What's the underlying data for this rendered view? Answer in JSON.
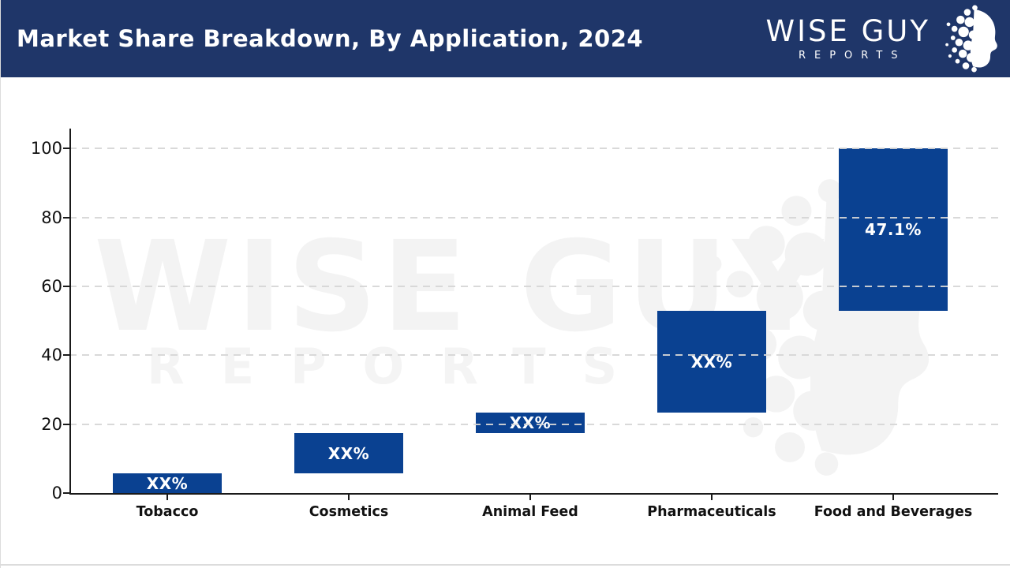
{
  "header": {
    "title": "Market Share Breakdown, By Application, 2024",
    "bg_color": "#1f3669",
    "logo": {
      "line1": "WISE GUY",
      "line2": "REPORTS"
    }
  },
  "watermark": {
    "line1": "WISE GUY",
    "line2": "REPORTS"
  },
  "colors": {
    "header_bg": "#1f3669",
    "bar": "#0a4191",
    "grid": "#d6d6d6",
    "axis": "#1a1a1a",
    "bar_label_text": "#ffffff",
    "watermark": "#f3f3f3"
  },
  "chart_data": {
    "type": "bar",
    "subtype": "waterfall-breakdown",
    "title": "Market Share Breakdown, By Application, 2024",
    "categories": [
      "Tobacco",
      "Cosmetics",
      "Animal Feed",
      "Pharmaceuticals",
      "Food and Beverages"
    ],
    "segments": [
      {
        "category": "Tobacco",
        "start": 0,
        "end": 5.7,
        "label": "XX%"
      },
      {
        "category": "Cosmetics",
        "start": 5.7,
        "end": 17.4,
        "label": "XX%"
      },
      {
        "category": "Animal Feed",
        "start": 17.4,
        "end": 23.3,
        "label": "XX%"
      },
      {
        "category": "Pharmaceuticals",
        "start": 23.3,
        "end": 52.9,
        "label": "XX%"
      },
      {
        "category": "Food and Beverages",
        "start": 52.9,
        "end": 100,
        "label": "47.1%"
      }
    ],
    "y_ticks": [
      0,
      20,
      40,
      60,
      80,
      100
    ],
    "ylim": [
      0,
      105
    ],
    "xlabel": "",
    "ylabel": "",
    "grid": "dashed-horizontal-over-bars",
    "legend": "none",
    "bar_color": "#0a4191"
  }
}
